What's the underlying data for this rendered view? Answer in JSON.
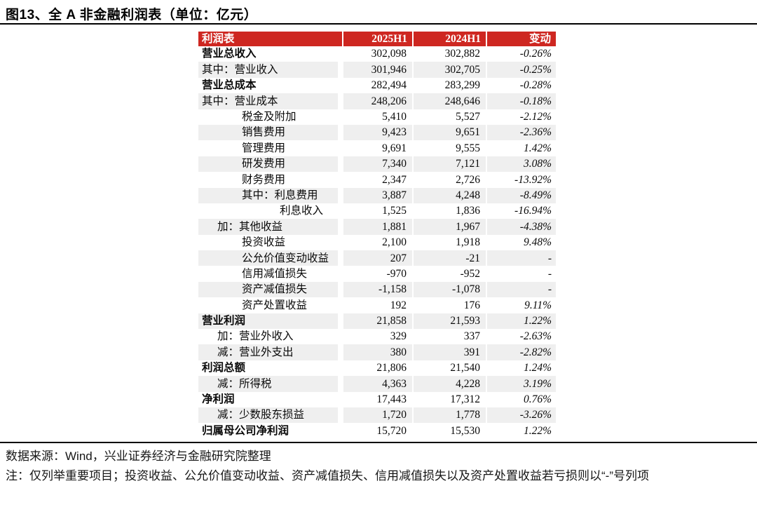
{
  "title": "图13、全 A 非金融利润表（单位：亿元）",
  "table": {
    "headers": [
      "利润表",
      "2025H1",
      "2024H1",
      "变动"
    ],
    "rows": [
      {
        "label": "营业总收入",
        "v2025": "302,098",
        "v2024": "302,882",
        "change": "-0.26%",
        "bold": true,
        "indent": 0
      },
      {
        "label": "其中：营业收入",
        "v2025": "301,946",
        "v2024": "302,705",
        "change": "-0.25%",
        "bold": false,
        "indent": 0
      },
      {
        "label": "营业总成本",
        "v2025": "282,494",
        "v2024": "283,299",
        "change": "-0.28%",
        "bold": true,
        "indent": 0
      },
      {
        "label": "其中：营业成本",
        "v2025": "248,206",
        "v2024": "248,646",
        "change": "-0.18%",
        "bold": false,
        "indent": 0
      },
      {
        "label": "税金及附加",
        "v2025": "5,410",
        "v2024": "5,527",
        "change": "-2.12%",
        "bold": false,
        "indent": 2
      },
      {
        "label": "销售费用",
        "v2025": "9,423",
        "v2024": "9,651",
        "change": "-2.36%",
        "bold": false,
        "indent": 2
      },
      {
        "label": "管理费用",
        "v2025": "9,691",
        "v2024": "9,555",
        "change": "1.42%",
        "bold": false,
        "indent": 2
      },
      {
        "label": "研发费用",
        "v2025": "7,340",
        "v2024": "7,121",
        "change": "3.08%",
        "bold": false,
        "indent": 2
      },
      {
        "label": "财务费用",
        "v2025": "2,347",
        "v2024": "2,726",
        "change": "-13.92%",
        "bold": false,
        "indent": 2
      },
      {
        "label": "其中：利息费用",
        "v2025": "3,887",
        "v2024": "4,248",
        "change": "-8.49%",
        "bold": false,
        "indent": 2
      },
      {
        "label": "利息收入",
        "v2025": "1,525",
        "v2024": "1,836",
        "change": "-16.94%",
        "bold": false,
        "indent": 3
      },
      {
        "label": "加：其他收益",
        "v2025": "1,881",
        "v2024": "1,967",
        "change": "-4.38%",
        "bold": false,
        "indent": 1
      },
      {
        "label": "投资收益",
        "v2025": "2,100",
        "v2024": "1,918",
        "change": "9.48%",
        "bold": false,
        "indent": 2
      },
      {
        "label": "公允价值变动收益",
        "v2025": "207",
        "v2024": "-21",
        "change": "-",
        "bold": false,
        "indent": 2
      },
      {
        "label": "信用减值损失",
        "v2025": "-970",
        "v2024": "-952",
        "change": "-",
        "bold": false,
        "indent": 2
      },
      {
        "label": "资产减值损失",
        "v2025": "-1,158",
        "v2024": "-1,078",
        "change": "-",
        "bold": false,
        "indent": 2
      },
      {
        "label": "资产处置收益",
        "v2025": "192",
        "v2024": "176",
        "change": "9.11%",
        "bold": false,
        "indent": 2
      },
      {
        "label": "营业利润",
        "v2025": "21,858",
        "v2024": "21,593",
        "change": "1.22%",
        "bold": true,
        "indent": 0
      },
      {
        "label": "加：营业外收入",
        "v2025": "329",
        "v2024": "337",
        "change": "-2.63%",
        "bold": false,
        "indent": 1
      },
      {
        "label": "减：营业外支出",
        "v2025": "380",
        "v2024": "391",
        "change": "-2.82%",
        "bold": false,
        "indent": 1
      },
      {
        "label": "利润总额",
        "v2025": "21,806",
        "v2024": "21,540",
        "change": "1.24%",
        "bold": true,
        "indent": 0
      },
      {
        "label": "减：所得税",
        "v2025": "4,363",
        "v2024": "4,228",
        "change": "3.19%",
        "bold": false,
        "indent": 1
      },
      {
        "label": "净利润",
        "v2025": "17,443",
        "v2024": "17,312",
        "change": "0.76%",
        "bold": true,
        "indent": 0
      },
      {
        "label": "减：少数股东损益",
        "v2025": "1,720",
        "v2024": "1,778",
        "change": "-3.26%",
        "bold": false,
        "indent": 1
      },
      {
        "label": "归属母公司净利润",
        "v2025": "15,720",
        "v2024": "15,530",
        "change": "1.22%",
        "bold": true,
        "indent": 0
      }
    ]
  },
  "footer": {
    "source": "数据来源：Wind，兴业证券经济与金融研究院整理",
    "note": "注：仅列举重要项目；投资收益、公允价值变动收益、资产减值损失、信用减值损失以及资产处置收益若亏损则以“-”号列项"
  },
  "colors": {
    "header_bg": "#CE2721",
    "header_text": "#FFFFFF",
    "row_alt": "#EFEFEF",
    "rule": "#000000"
  }
}
